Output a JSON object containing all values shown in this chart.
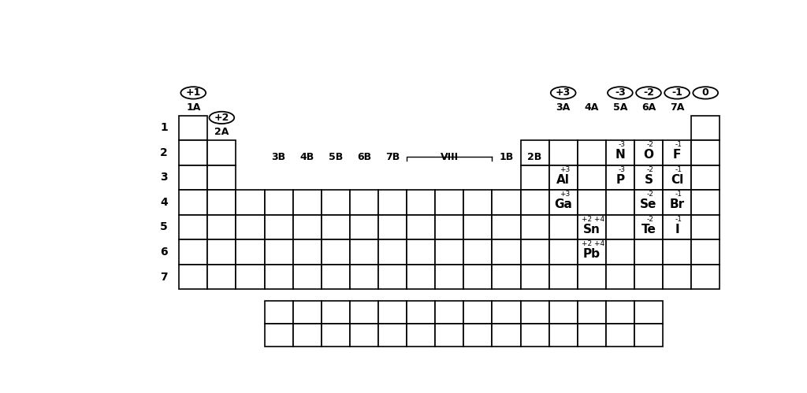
{
  "fig_width": 10.24,
  "fig_height": 4.99,
  "bg_color": "#ffffff",
  "grid_lw": 1.2,
  "grid_color": "#000000",
  "row_labels": [
    "1",
    "2",
    "3",
    "4",
    "5",
    "6",
    "7"
  ],
  "element_labels": [
    {
      "symbol": "N",
      "charge": "-3",
      "row": 1,
      "col": 15
    },
    {
      "symbol": "O",
      "charge": "-2",
      "row": 1,
      "col": 16
    },
    {
      "symbol": "F",
      "charge": "-1",
      "row": 1,
      "col": 17
    },
    {
      "symbol": "Al",
      "charge": "+3",
      "row": 2,
      "col": 13
    },
    {
      "symbol": "P",
      "charge": "-3",
      "row": 2,
      "col": 15
    },
    {
      "symbol": "S",
      "charge": "-2",
      "row": 2,
      "col": 16
    },
    {
      "symbol": "Cl",
      "charge": "-1",
      "row": 2,
      "col": 17
    },
    {
      "symbol": "Ga",
      "charge": "+3",
      "row": 3,
      "col": 13
    },
    {
      "symbol": "Se",
      "charge": "-2",
      "row": 3,
      "col": 16
    },
    {
      "symbol": "Br",
      "charge": "-1",
      "row": 3,
      "col": 17
    },
    {
      "symbol": "Sn",
      "charge": "+2 +4",
      "row": 4,
      "col": 14
    },
    {
      "symbol": "Te",
      "charge": "-2",
      "row": 4,
      "col": 16
    },
    {
      "symbol": "I",
      "charge": "-1",
      "row": 4,
      "col": 17
    },
    {
      "symbol": "Pb",
      "charge": "+2 +4",
      "row": 5,
      "col": 14
    }
  ]
}
